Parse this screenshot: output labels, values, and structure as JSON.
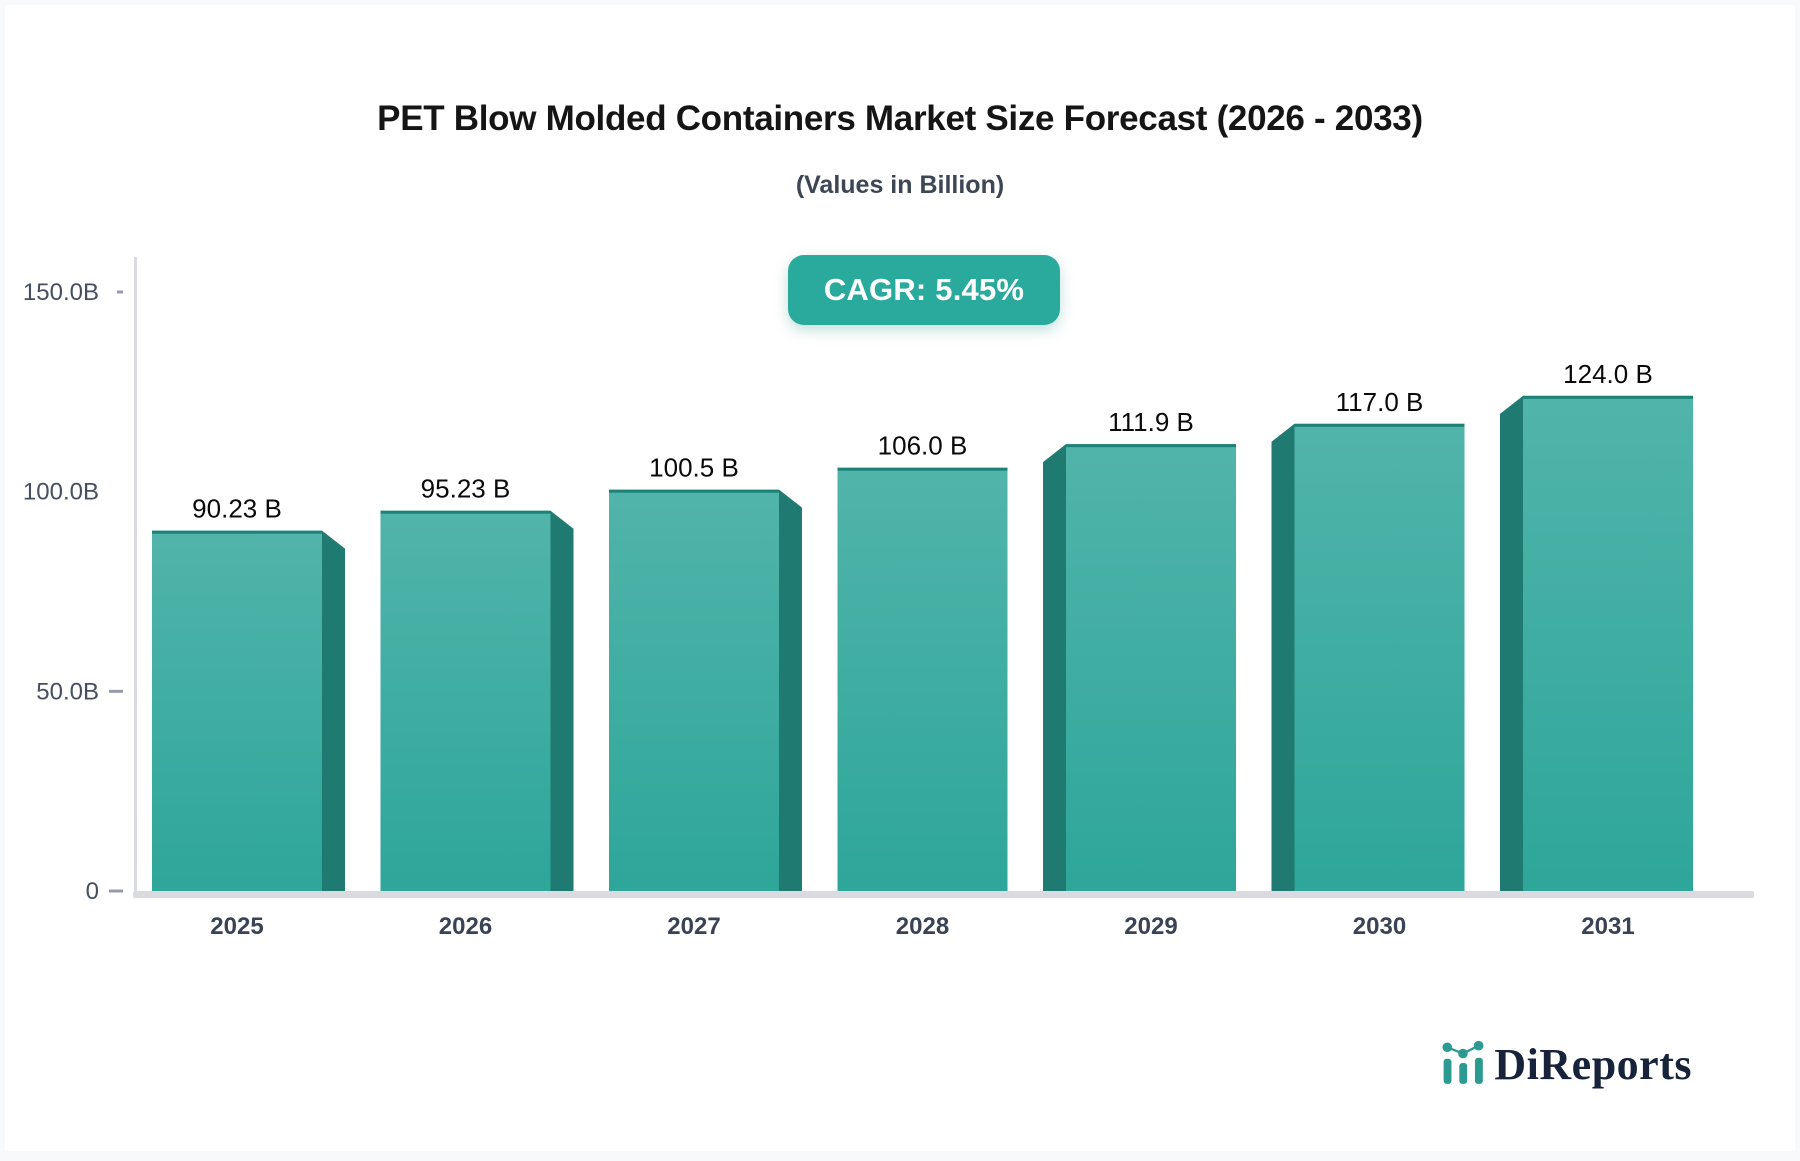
{
  "page": {
    "background": "#f7f9fb",
    "card_background": "#ffffff"
  },
  "chart_data": {
    "type": "bar",
    "title": "PET Blow Molded Containers Market Size Forecast (2026 - 2033)",
    "subtitle": "(Values in Billion)",
    "cagr_badge": "CAGR: 5.45%",
    "unit": "Billion",
    "categories": [
      "2025",
      "2026",
      "2027",
      "2028",
      "2029",
      "2030",
      "2031"
    ],
    "values": [
      90.23,
      95.23,
      100.5,
      106.0,
      111.9,
      117.0,
      124.0
    ],
    "value_labels": [
      "90.23 B",
      "95.23 B",
      "100.5 B",
      "106.0 B",
      "111.9 B",
      "117.0 B",
      "124.0 B"
    ],
    "y_ticks": [
      {
        "label": "150.0B",
        "value": 150
      },
      {
        "label": "100.0B",
        "value": 100
      },
      {
        "label": "50.0B",
        "value": 50
      },
      {
        "label": "0",
        "value": 0
      }
    ],
    "ylim": [
      0,
      150
    ],
    "grid": false,
    "legend": false
  },
  "brand": {
    "name": "DiReports",
    "icon": "mini-bar-chart-icon"
  },
  "colors": {
    "bar_face_top": "#51b4aa",
    "bar_face_bottom": "#2ea69a",
    "bar_top_edge": "#1c8177",
    "bar_side": "#1f7b71",
    "badge_bg": "#2aa99d",
    "badge_text": "#ffffff",
    "axis": "#d9dbe1",
    "tick_dash": "#959ca8",
    "title_text": "#151515",
    "subtitle_text": "#3c4654",
    "y_label_text": "#454f5f",
    "x_label_text": "#3a4356",
    "value_label_text": "#0a0a0a",
    "logo_navy": "#17233a",
    "logo_teal": "#2b9a91"
  }
}
